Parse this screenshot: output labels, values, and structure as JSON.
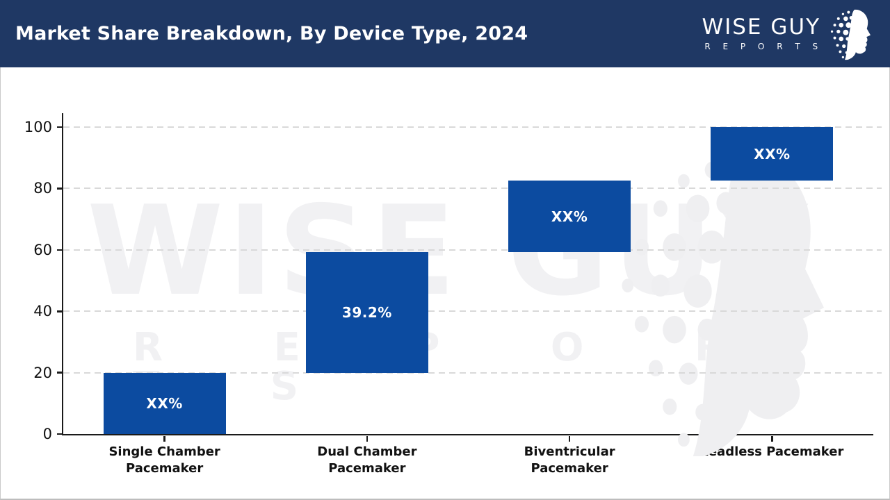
{
  "header": {
    "title": "Market Share Breakdown, By Device Type, 2024",
    "logo": {
      "line1": "WISE GUY",
      "line2": "R E P O R T S"
    }
  },
  "watermark": {
    "line1": "WISE GUY",
    "line2": "R E P O R T S"
  },
  "colors": {
    "header_bg": "#1f3864",
    "bar": "#0c4ba0",
    "grid": "#d9d9d9",
    "axis": "#1a1a1a",
    "bar_label": "#ffffff",
    "watermark": "#f1f1f3"
  },
  "chart_data": {
    "type": "bar",
    "variant": "floating-waterfall",
    "title": "Market Share Breakdown, By Device Type, 2024",
    "xlabel": "",
    "ylabel": "",
    "categories": [
      "Single Chamber\nPacemaker",
      "Dual Chamber\nPacemaker",
      "Biventricular\nPacemaker",
      "Leadless Pacemaker"
    ],
    "bars": [
      {
        "name": "single-chamber-pacemaker",
        "start": 0,
        "end": 20,
        "value": 20,
        "label": "XX%"
      },
      {
        "name": "dual-chamber-pacemaker",
        "start": 20,
        "end": 59.2,
        "value": 39.2,
        "label": "39.2%"
      },
      {
        "name": "biventricular-pacemaker",
        "start": 59.2,
        "end": 82.6,
        "value": 23.4,
        "label": "XX%"
      },
      {
        "name": "leadless-pacemaker",
        "start": 82.6,
        "end": 100,
        "value": 17.4,
        "label": "XX%"
      }
    ],
    "yticks": [
      0,
      20,
      40,
      60,
      80,
      100
    ],
    "ylim": [
      0,
      105
    ],
    "grid": "dashed-horizontal",
    "legend": "none"
  }
}
